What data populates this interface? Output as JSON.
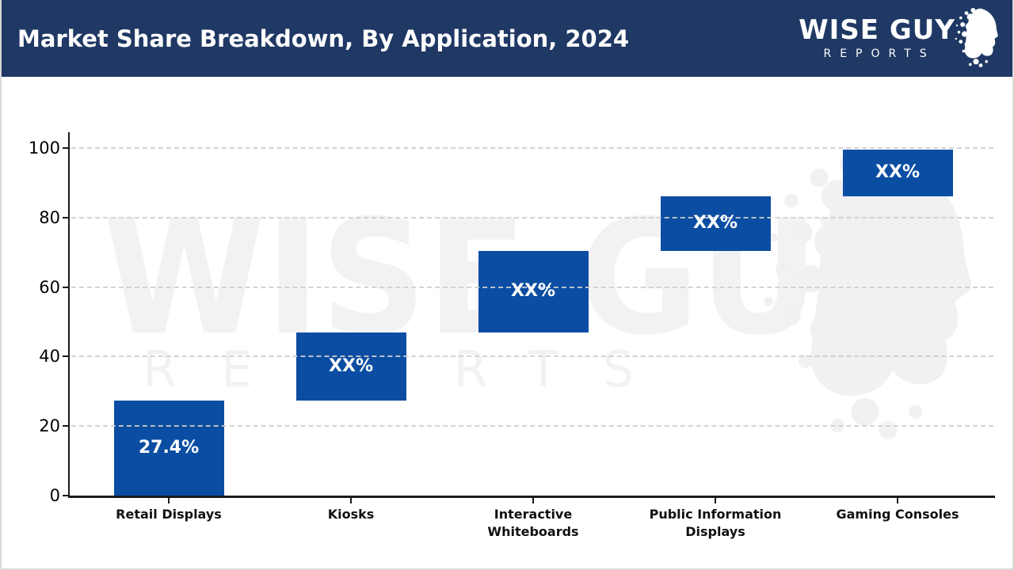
{
  "header": {
    "title": "Market Share Breakdown, By Application, 2024",
    "bg_color": "#1f3864",
    "logo": {
      "line1": "WISE GUY",
      "line2": "REPORTS"
    }
  },
  "watermark": {
    "line1": "WISE GUY",
    "line2": "REPORTS"
  },
  "chart_data": {
    "type": "bar",
    "subtype": "waterfall",
    "title": "Market Share Breakdown, By Application, 2024",
    "xlabel": "",
    "ylabel": "",
    "ylim": [
      0,
      100
    ],
    "yticks": [
      0,
      20,
      40,
      60,
      80,
      100
    ],
    "grid": "horizontal-dashed",
    "legend": "none",
    "bar_color": "#0b4da2",
    "value_label_color": "#ffffff",
    "categories": [
      "Retail Displays",
      "Kiosks",
      "Interactive Whiteboards",
      "Public Information Displays",
      "Gaming Consoles"
    ],
    "segments": [
      {
        "category": "Retail Displays",
        "start": 0,
        "end": 27.4,
        "label": "27.4%"
      },
      {
        "category": "Kiosks",
        "start": 27.4,
        "end": 47.0,
        "label": "XX%"
      },
      {
        "category": "Interactive Whiteboards",
        "start": 47.0,
        "end": 70.4,
        "label": "XX%"
      },
      {
        "category": "Public Information Displays",
        "start": 70.4,
        "end": 86.1,
        "label": "XX%"
      },
      {
        "category": "Gaming Consoles",
        "start": 86.1,
        "end": 99.6,
        "label": "XX%"
      }
    ]
  }
}
